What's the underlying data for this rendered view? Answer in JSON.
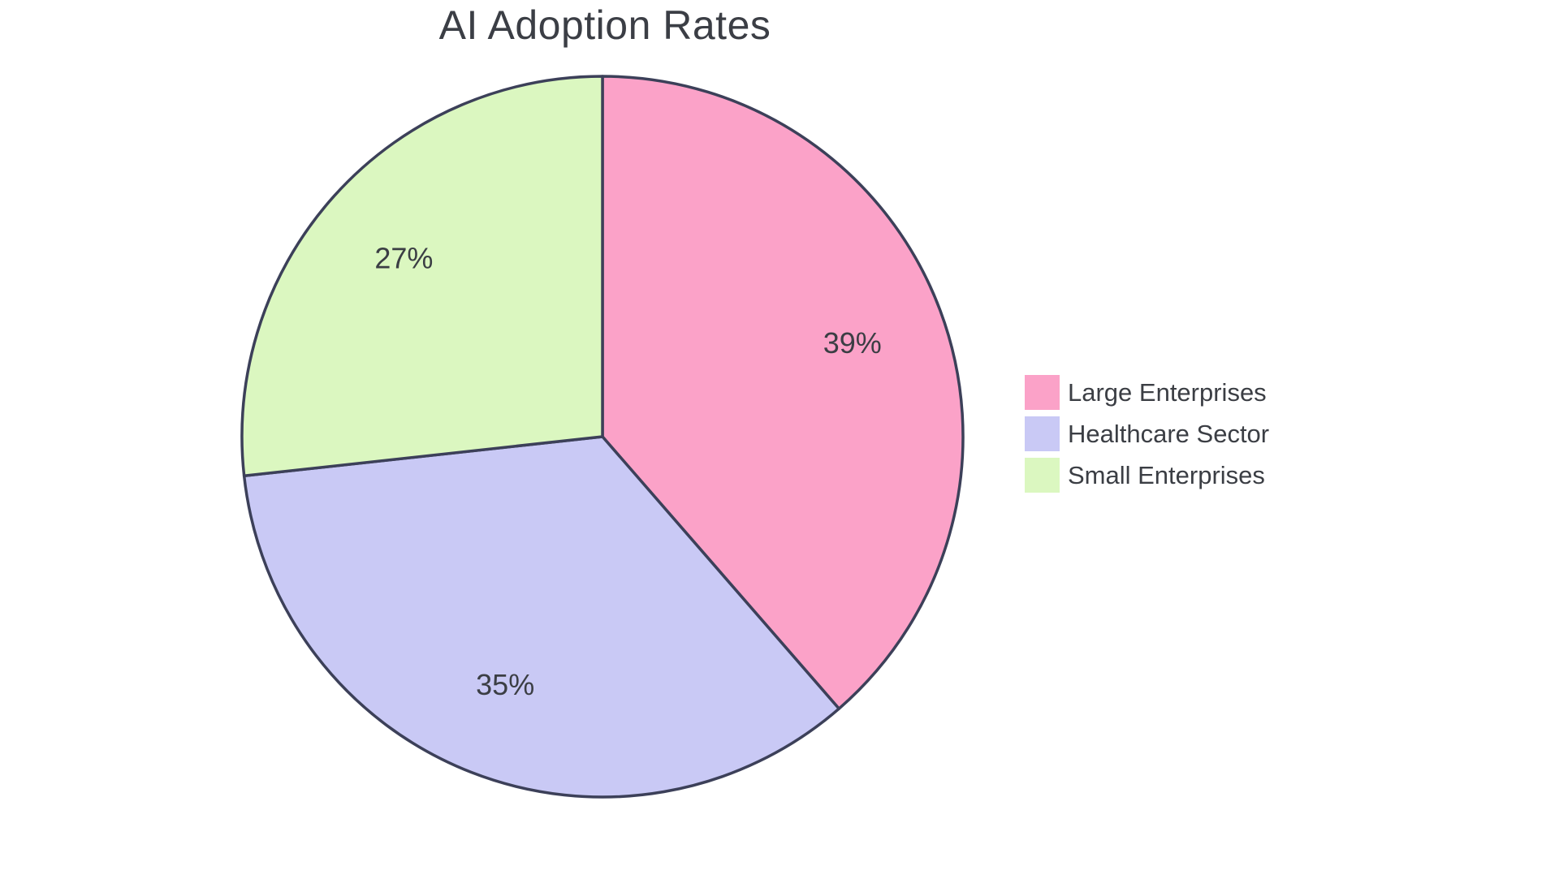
{
  "page": {
    "background_color": "#ffffff",
    "text_color": "#3b3e44"
  },
  "chart_data": {
    "type": "pie",
    "title": "AI Adoption Rates",
    "series": [
      {
        "name": "Large Enterprises",
        "value": 39,
        "percent_label": "39%",
        "color": "#FBA2C8"
      },
      {
        "name": "Healthcare Sector",
        "value": 35,
        "percent_label": "35%",
        "color": "#C9C9F5"
      },
      {
        "name": "Small Enterprises",
        "value": 27,
        "percent_label": "27%",
        "color": "#DBF7C0"
      }
    ],
    "slice_border_color": "#3C4059",
    "slice_border_width": 3.5,
    "start_angle": "12-o-clock",
    "direction": "clockwise",
    "legend_position": "right",
    "labels_inside": true
  }
}
